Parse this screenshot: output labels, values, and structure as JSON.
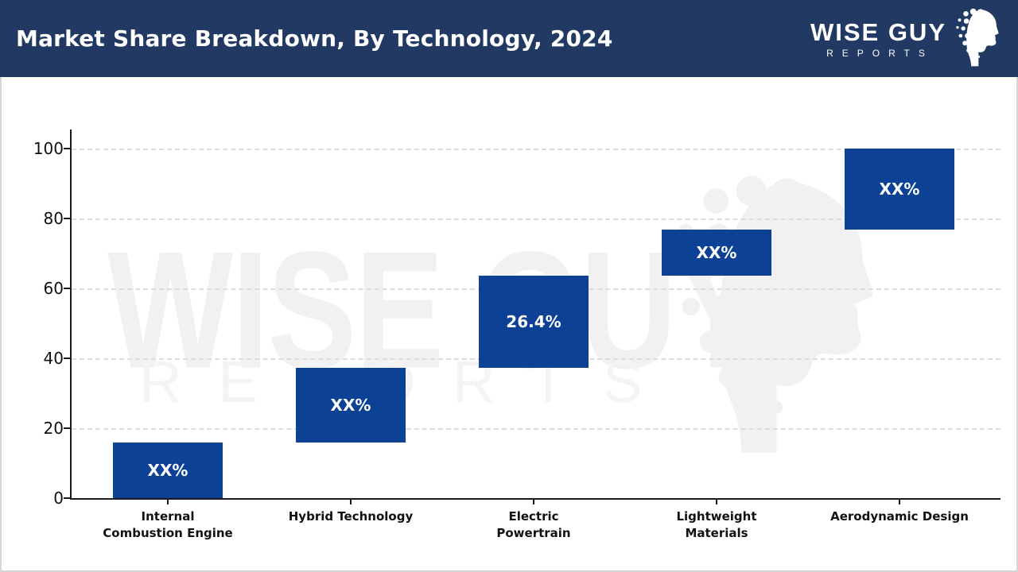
{
  "header": {
    "title": "Market Share Breakdown, By Technology, 2024",
    "logo": {
      "line1": "WISE GUY",
      "line2": "REPORTS"
    }
  },
  "watermark": {
    "line1": "WISE GUY",
    "line2": "REPORTS"
  },
  "colors": {
    "header_bg": "#223a63",
    "bar_blue": "#0c4195",
    "grid_gray": "#dcdcdc",
    "text_dark": "#111111",
    "watermark_gray": "#f1f1f1"
  },
  "chart_data": {
    "type": "bar",
    "subtype": "waterfall",
    "title": "Market Share Breakdown, By Technology, 2024",
    "xlabel": "",
    "ylabel": "",
    "ylim": [
      0,
      100
    ],
    "yticks": [
      0,
      20,
      40,
      60,
      80,
      100
    ],
    "grid": "horizontal dashed",
    "legend": "none",
    "bar_color": "#0c4195",
    "categories": [
      "Internal Combustion Engine",
      "Hybrid Technology",
      "Electric Powertrain",
      "Lightweight Materials",
      "Aerodynamic Design"
    ],
    "category_lines": [
      [
        "Internal",
        "Combustion Engine"
      ],
      [
        "Hybrid Technology"
      ],
      [
        "Electric",
        "Powertrain"
      ],
      [
        "Lightweight",
        "Materials"
      ],
      [
        "Aerodynamic Design"
      ]
    ],
    "segments": [
      {
        "category": "Internal Combustion Engine",
        "start": 0,
        "end": 16,
        "value": 16,
        "label": "XX%"
      },
      {
        "category": "Hybrid Technology",
        "start": 16,
        "end": 37.3,
        "value": 21.3,
        "label": "XX%"
      },
      {
        "category": "Electric Powertrain",
        "start": 37.3,
        "end": 63.7,
        "value": 26.4,
        "label": "26.4%"
      },
      {
        "category": "Lightweight Materials",
        "start": 63.7,
        "end": 76.8,
        "value": 13.1,
        "label": "XX%"
      },
      {
        "category": "Aerodynamic Design",
        "start": 76.8,
        "end": 100,
        "value": 23.2,
        "label": "XX%"
      }
    ]
  }
}
